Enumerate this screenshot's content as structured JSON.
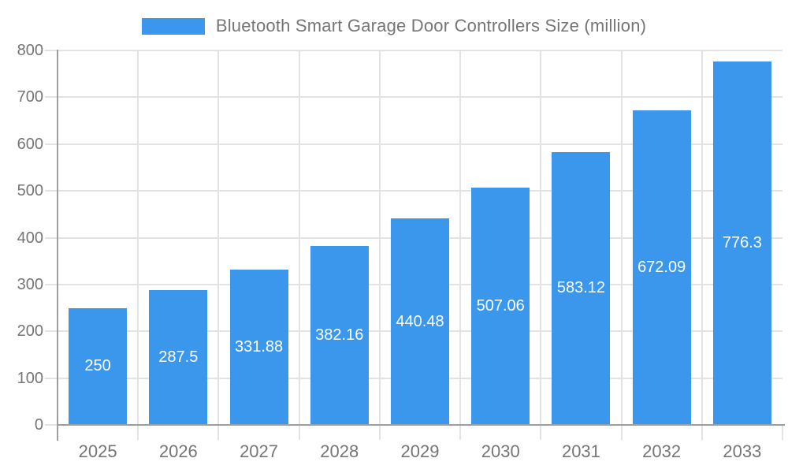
{
  "legend": {
    "label": "Bluetooth Smart Garage Door Controllers Size (million)"
  },
  "chart_data": {
    "type": "bar",
    "title": "Bluetooth Smart Garage Door Controllers Size (million)",
    "categories": [
      "2025",
      "2026",
      "2027",
      "2028",
      "2029",
      "2030",
      "2031",
      "2032",
      "2033"
    ],
    "values": [
      250,
      287.5,
      331.88,
      382.16,
      440.48,
      507.06,
      583.12,
      672.09,
      776.3
    ],
    "value_labels": [
      "250",
      "287.5",
      "331.88",
      "382.16",
      "440.48",
      "507.06",
      "583.12",
      "672.09",
      "776.3"
    ],
    "xlabel": "",
    "ylabel": "",
    "ylim": [
      0,
      800
    ],
    "yticks": [
      0,
      100,
      200,
      300,
      400,
      500,
      600,
      700,
      800
    ],
    "grid": "horizontal gridlines plus vertical category-boundary lines",
    "legend_position": "top-center",
    "bar_color": "#3a97ec",
    "value_label_color": "#ffffff"
  },
  "colors": {
    "bar": "#3a97ec",
    "axis_line": "#9e9e9e",
    "gridline": "#e3e3e3",
    "text": "#757575",
    "background": "#ffffff"
  }
}
